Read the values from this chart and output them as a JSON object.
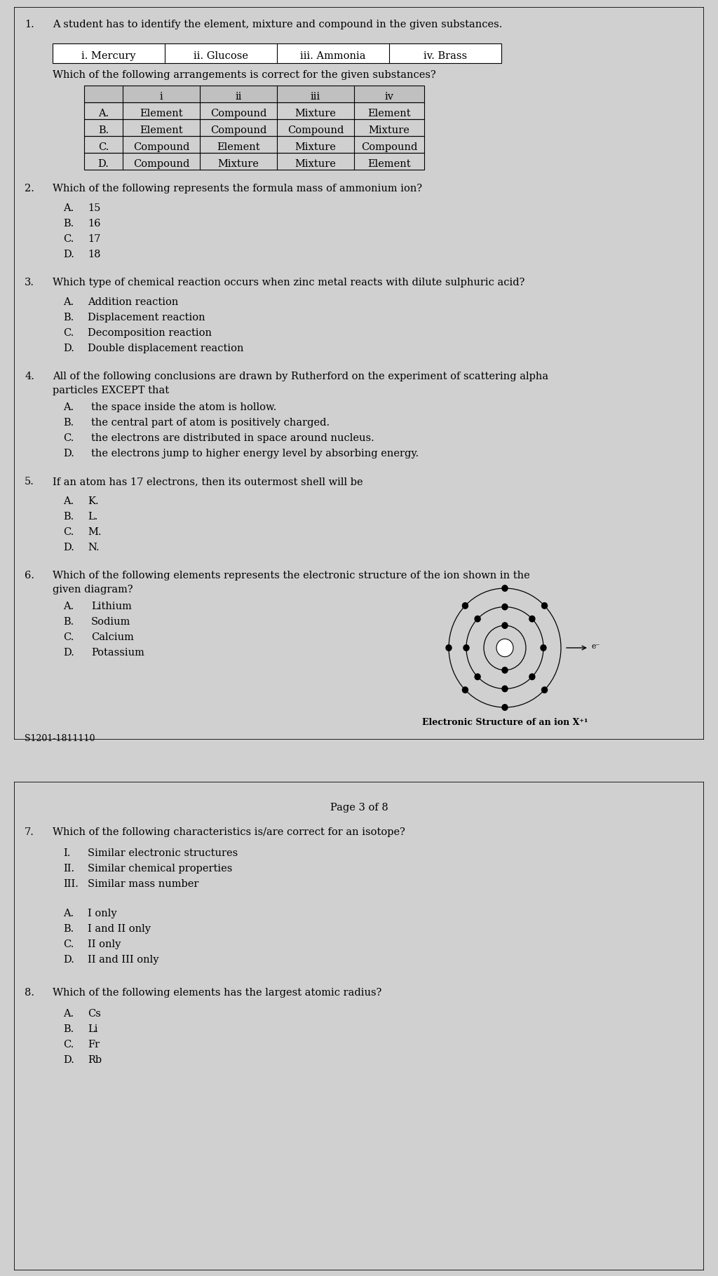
{
  "bg_color": "#d0d0d0",
  "page1": {
    "q1_text": "A student has to identify the element, mixture and compound in the given substances.",
    "substances_row": [
      "i. Mercury",
      "ii. Glucose",
      "iii. Ammonia",
      "iv. Brass"
    ],
    "sub_question": "Which of the following arrangements is correct for the given substances?",
    "table_header": [
      "",
      "i",
      "ii",
      "iii",
      "iv"
    ],
    "table_rows": [
      [
        "A.",
        "Element",
        "Compound",
        "Mixture",
        "Element"
      ],
      [
        "B.",
        "Element",
        "Compound",
        "Compound",
        "Mixture"
      ],
      [
        "C.",
        "Compound",
        "Element",
        "Mixture",
        "Compound"
      ],
      [
        "D.",
        "Compound",
        "Mixture",
        "Mixture",
        "Element"
      ]
    ],
    "q2_text": "Which of the following represents the formula mass of ammonium ion?",
    "q2_opts": [
      [
        "A.",
        "15"
      ],
      [
        "B.",
        "16"
      ],
      [
        "C.",
        "17"
      ],
      [
        "D.",
        "18"
      ]
    ],
    "q3_text": "Which type of chemical reaction occurs when zinc metal reacts with dilute sulphuric acid?",
    "q3_opts": [
      [
        "A.",
        "Addition reaction"
      ],
      [
        "B.",
        "Displacement reaction"
      ],
      [
        "C.",
        "Decomposition reaction"
      ],
      [
        "D.",
        "Double displacement reaction"
      ]
    ],
    "q4_text1": "All of the following conclusions are drawn by Rutherford on the experiment of scattering alpha",
    "q4_text2": "particles EXCEPT that",
    "q4_opts": [
      [
        "A.",
        "the space inside the atom is hollow."
      ],
      [
        "B.",
        "the central part of atom is positively charged."
      ],
      [
        "C.",
        "the electrons are distributed in space around nucleus."
      ],
      [
        "D.",
        "the electrons jump to higher energy level by absorbing energy."
      ]
    ],
    "q5_text": "If an atom has 17 electrons, then its outermost shell will be",
    "q5_opts": [
      [
        "A.",
        "K."
      ],
      [
        "B.",
        "L."
      ],
      [
        "C.",
        "M."
      ],
      [
        "D.",
        "N."
      ]
    ],
    "q6_text1": "Which of the following elements represents the electronic structure of the ion shown in the",
    "q6_text2": "given diagram?",
    "q6_opts": [
      [
        "A.",
        "Lithium"
      ],
      [
        "B.",
        "Sodium"
      ],
      [
        "C.",
        "Calcium"
      ],
      [
        "D.",
        "Potassium"
      ]
    ],
    "diagram_caption": "Electronic Structure of an ion X",
    "footer": "S1201-1811110"
  },
  "page2": {
    "page_label": "Page 3 of 8",
    "q7_text": "Which of the following characteristics is/are correct for an isotope?",
    "q7_roman": [
      [
        "I.",
        "Similar electronic structures"
      ],
      [
        "II.",
        "Similar chemical properties"
      ],
      [
        "III.",
        "Similar mass number"
      ]
    ],
    "q7_opts": [
      [
        "A.",
        "I only"
      ],
      [
        "B.",
        "I and II only"
      ],
      [
        "C.",
        "II only"
      ],
      [
        "D.",
        "II and III only"
      ]
    ],
    "q8_text": "Which of the following elements has the largest atomic radius?",
    "q8_opts": [
      [
        "A.",
        "Cs"
      ],
      [
        "B.",
        "Li"
      ],
      [
        "C.",
        "Fr"
      ],
      [
        "D.",
        "Rb"
      ]
    ]
  }
}
